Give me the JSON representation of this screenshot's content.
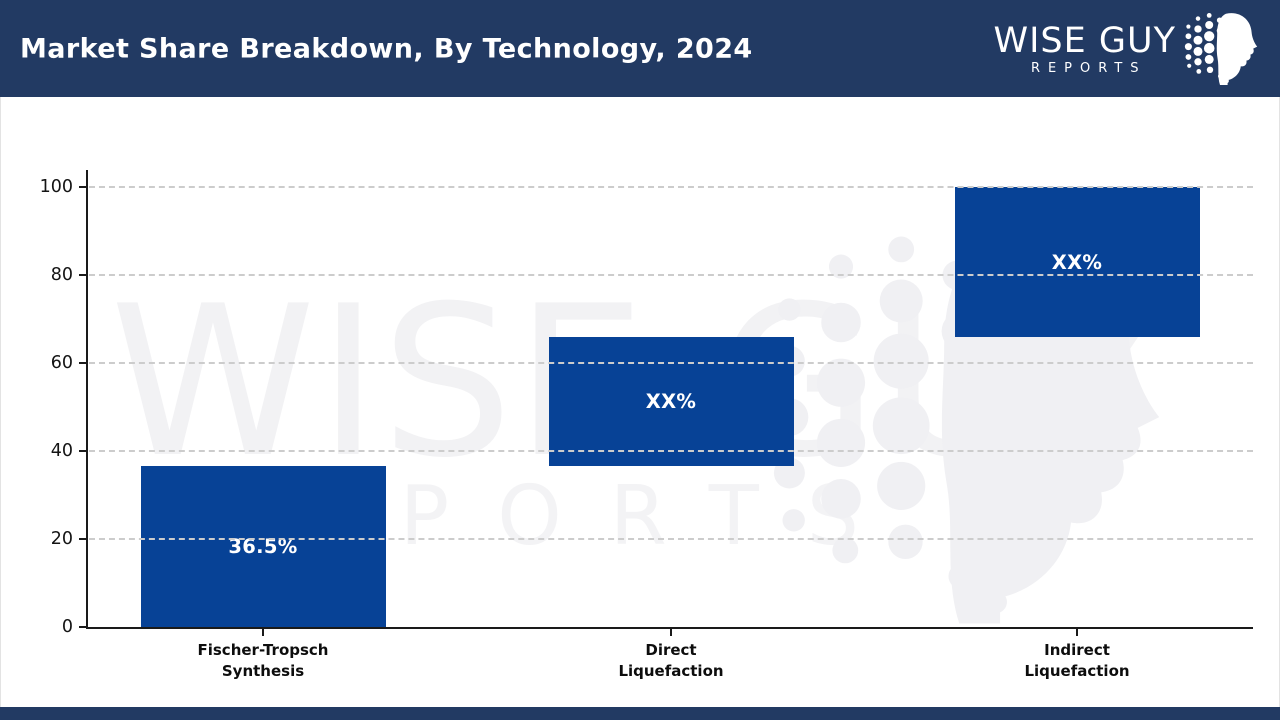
{
  "header": {
    "title": "Market Share Breakdown, By Technology, 2024",
    "logo": {
      "name": "WISE GUY",
      "sub": "REPORTS"
    }
  },
  "watermark": {
    "line1": "WISE GUY",
    "line2": "REPORTS"
  },
  "colors": {
    "navy": "#223a63",
    "bar_blue": "#074296",
    "grid": "#cccccc",
    "watermark": "#f2f2f4"
  },
  "chart_data": {
    "type": "bar",
    "subtype": "stacked-waterfall",
    "title": "Market Share Breakdown, By Technology, 2024",
    "categories": [
      "Fischer-Tropsch Synthesis",
      "Direct Liquefaction",
      "Indirect Liquefaction"
    ],
    "category_lines": [
      [
        "Fischer-Tropsch",
        "Synthesis"
      ],
      [
        "Direct",
        "Liquefaction"
      ],
      [
        "Indirect",
        "Liquefaction"
      ]
    ],
    "segments": [
      {
        "start": 0,
        "end": 36.5,
        "label": "36.5%"
      },
      {
        "start": 36.5,
        "end": 65.9,
        "label": "XX%"
      },
      {
        "start": 65.9,
        "end": 100,
        "label": "XX%"
      }
    ],
    "values": [
      36.5,
      29.4,
      34.1
    ],
    "bar_labels": [
      "36.5%",
      "XX%",
      "XX%"
    ],
    "ylim": [
      0,
      100
    ],
    "yticks": [
      0,
      20,
      40,
      60,
      80,
      100
    ],
    "grid": "horizontal-dashed",
    "legend": "none"
  }
}
